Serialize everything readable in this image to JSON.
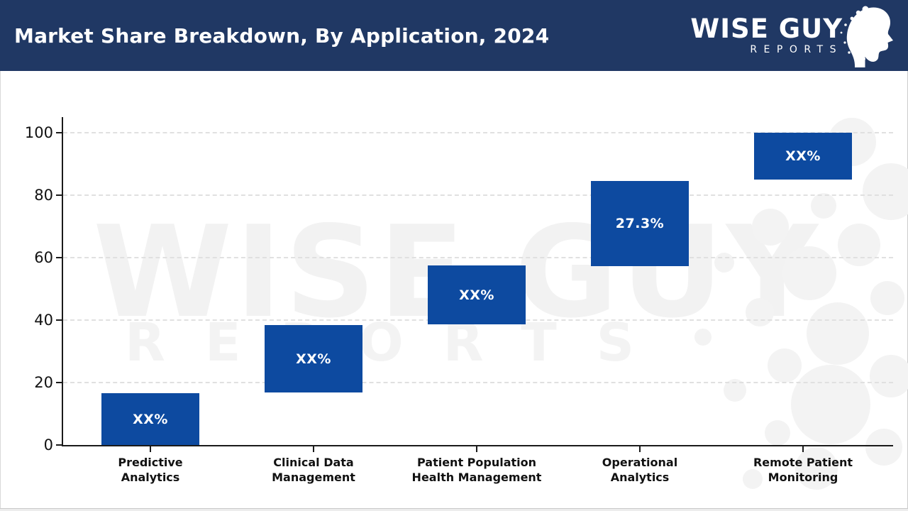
{
  "header": {
    "title": "Market Share Breakdown, By Application, 2024",
    "logo": {
      "line1": "WISE GUY",
      "line2": "REPORTS"
    }
  },
  "watermark": {
    "line1": "WISE GUY",
    "line2": "REPORTS"
  },
  "chart_data": {
    "type": "bar",
    "subtype": "floating-waterfall",
    "title": "Market Share Breakdown, By Application, 2024",
    "categories": [
      [
        "Predictive",
        "Analytics"
      ],
      [
        "Clinical Data",
        "Management"
      ],
      [
        "Patient Population",
        "Health Management"
      ],
      [
        "Operational",
        "Analytics"
      ],
      [
        "Remote Patient",
        "Monitoring"
      ]
    ],
    "bars": [
      {
        "start": 0,
        "end": 16.5,
        "label": "XX%"
      },
      {
        "start": 16.8,
        "end": 38.4,
        "label": "XX%"
      },
      {
        "start": 38.6,
        "end": 57.5,
        "label": "XX%"
      },
      {
        "start": 57.2,
        "end": 84.5,
        "label": "27.3%"
      },
      {
        "start": 85.0,
        "end": 100.0,
        "label": "XX%"
      }
    ],
    "yticks": [
      0,
      20,
      40,
      60,
      80,
      100
    ],
    "ylim": [
      0,
      105
    ],
    "xlabel": "",
    "ylabel": "",
    "grid": "horizontal-dashed",
    "legend": "none",
    "colors": {
      "bar": "#0d4aa0",
      "header_bg": "#203864",
      "grid": "#e0e0e0",
      "axis": "#1a1a1a",
      "label_on_bar": "#ffffff",
      "watermark": "#f2f2f2"
    }
  }
}
